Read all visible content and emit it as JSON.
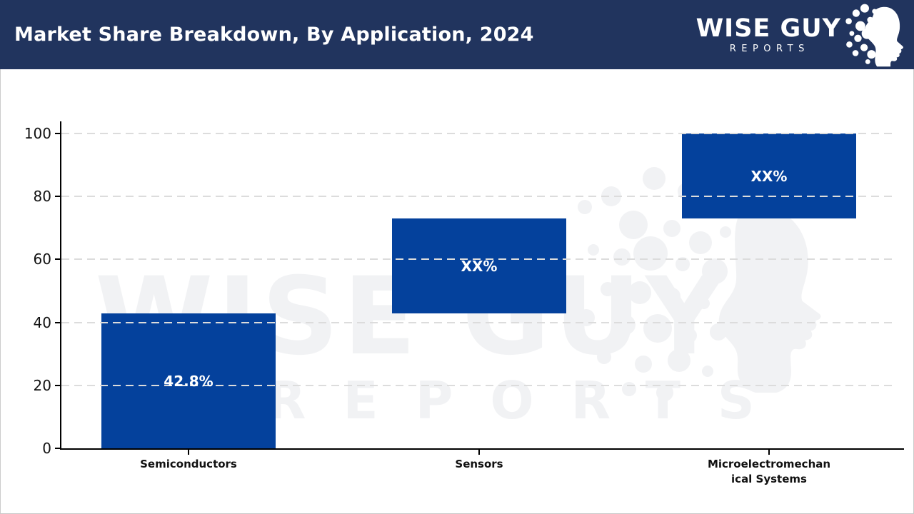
{
  "header": {
    "title": "Market Share Breakdown, By Application, 2024"
  },
  "logo": {
    "wordmark": "WISE GUY",
    "subtitle": "REPORTS",
    "face_icon": "dotted-head-profile"
  },
  "watermark": {
    "line1": "WISE GUY",
    "line2": "REPORTS",
    "face_icon": "dotted-head-profile"
  },
  "colors": {
    "header_bg": "#21345e",
    "bar": "#04419c",
    "bar_label": "#ffffff",
    "gridline": "#dcdcdc",
    "axis": "#000000",
    "tick_text": "#111111",
    "watermark": "#f1f2f4",
    "canvas_border": "#cccccc"
  },
  "chart_data": {
    "type": "bar",
    "subtype": "waterfall-cumulative",
    "title": "Market Share Breakdown, By Application, 2024",
    "xlabel": "",
    "ylabel": "",
    "ylim": [
      0,
      100
    ],
    "yticks": [
      0,
      20,
      40,
      60,
      80,
      100
    ],
    "grid": "horizontal-dashed",
    "legend": "none",
    "categories": [
      {
        "label": "Semiconductors",
        "lines": [
          "Semiconductors"
        ]
      },
      {
        "label": "Sensors",
        "lines": [
          "Sensors"
        ]
      },
      {
        "label": "Microelectromechanical Systems",
        "lines": [
          "Microelectromechan",
          "ical Systems"
        ]
      }
    ],
    "segments": [
      {
        "category": "Semiconductors",
        "start": 0,
        "end": 42.8,
        "label": "42.8%"
      },
      {
        "category": "Sensors",
        "start": 42.8,
        "end": 73,
        "label": "XX%"
      },
      {
        "category": "Microelectromechanical Systems",
        "start": 73,
        "end": 100,
        "label": "XX%"
      }
    ]
  }
}
